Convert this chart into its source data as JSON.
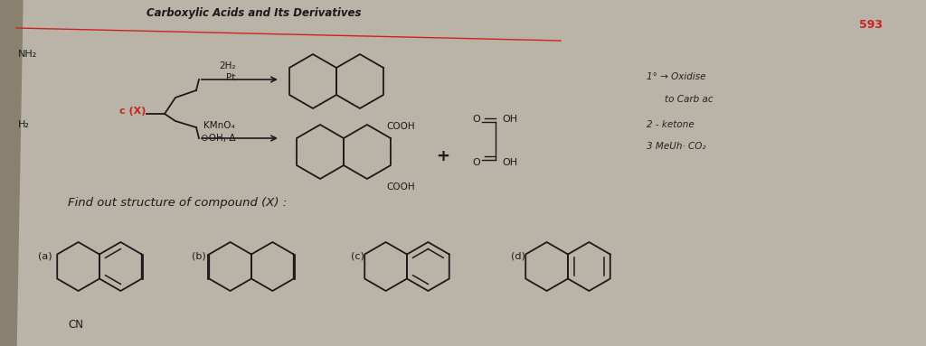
{
  "title": "Carboxylic Acids and Its Derivatives",
  "page_number": "593",
  "bg_color": "#bab4a8",
  "text_color": "#1a1a1a",
  "red_line_color": "#cc2222",
  "label_x": "c (X)",
  "reagent1_top": "2H₂",
  "reagent1_bot": "Pt",
  "reagent2_top": "KMnO₄",
  "reagent2_bot": "⊙OH, Δ",
  "find_text": "Find out structure of compound (X) :",
  "option_labels": [
    "(a)",
    "(b)",
    "(c)",
    "(d)"
  ],
  "handwritten_notes": [
    "1° → Oxidise",
    "to Carb ac",
    "2 - ketone",
    "3 MeUh· CO₂"
  ],
  "bottom_label": "CN"
}
